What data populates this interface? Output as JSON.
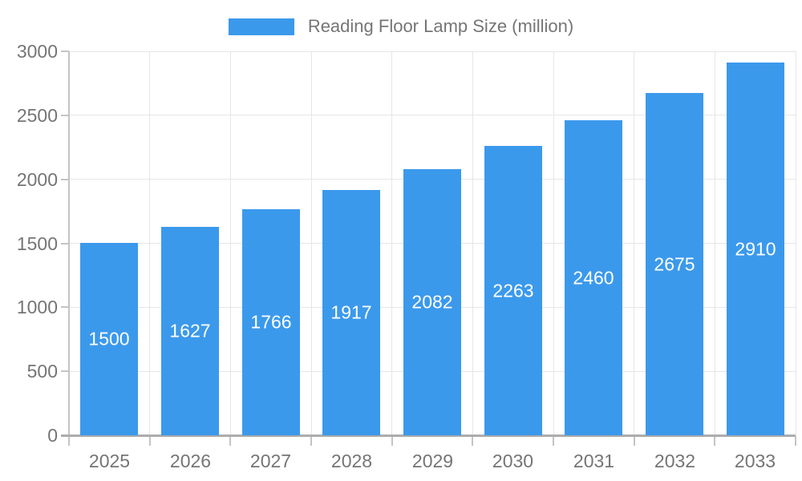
{
  "chart_data": {
    "type": "bar",
    "title": "Reading Floor Lamp Size (million)",
    "categories": [
      "2025",
      "2026",
      "2027",
      "2028",
      "2029",
      "2030",
      "2031",
      "2032",
      "2033"
    ],
    "values": [
      1500,
      1627,
      1766,
      1917,
      2082,
      2263,
      2460,
      2675,
      2910
    ],
    "xlabel": "",
    "ylabel": "",
    "ylim": [
      0,
      3000
    ],
    "ytick_step": 500,
    "grid": true,
    "legend_position": "top-center",
    "value_label_position": "inside-center"
  },
  "colors": {
    "bar": "#3B99EC",
    "bar_value_label": "#FFFFFF",
    "axis_text": "#757575",
    "legend_text": "#757575",
    "gridline": "#E6E6E6",
    "axis_line": "#C4C4C4",
    "baseline": "#ACACAC",
    "background": "#FFFFFF"
  }
}
